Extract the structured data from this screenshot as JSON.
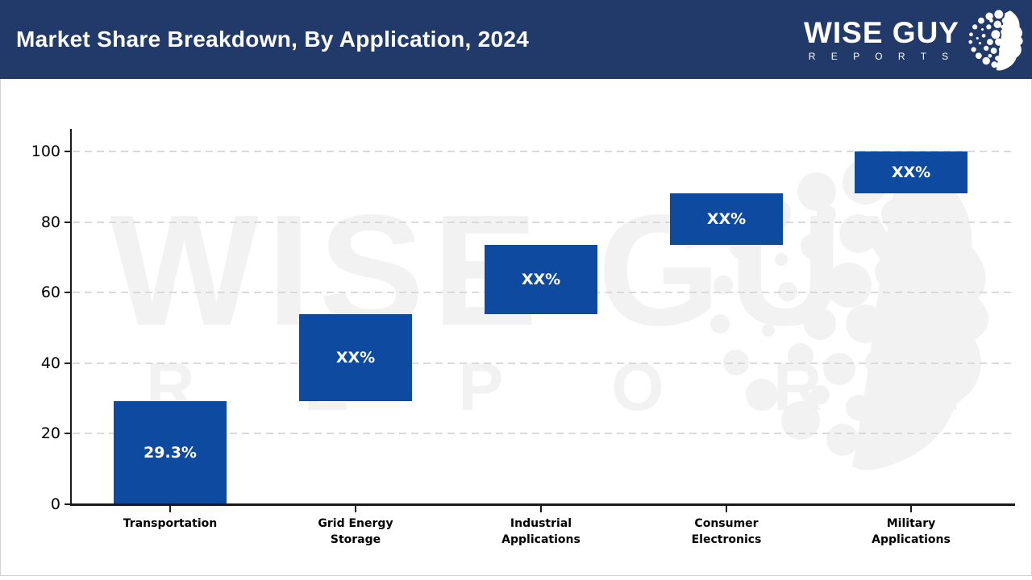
{
  "header": {
    "title": "Market Share Breakdown, By Application, 2024",
    "bg_color": "#223a69",
    "logo": {
      "brand": "WISE GUY",
      "sub": "R E P O R T S",
      "head_icon": "dotted-head-profile-icon"
    }
  },
  "watermark": {
    "line1": "WISE GUY",
    "line2": "R E P O R T S",
    "color": "#f2f2f2"
  },
  "chart_data": {
    "type": "bar",
    "subtype": "waterfall",
    "title": "Market Share Breakdown, By Application, 2024",
    "categories": [
      "Transportation",
      "Grid Energy\nStorage",
      "Industrial\nApplications",
      "Consumer\nElectronics",
      "Military\nApplications"
    ],
    "segments": [
      {
        "category": "Transportation",
        "start": 0,
        "end": 29.3,
        "value": 29.3,
        "value_label": "29.3%"
      },
      {
        "category": "Grid Energy Storage",
        "start": 29.3,
        "end": 53.9,
        "value": 24.6,
        "value_label": "XX%"
      },
      {
        "category": "Industrial Applications",
        "start": 53.9,
        "end": 73.5,
        "value": 19.6,
        "value_label": "XX%"
      },
      {
        "category": "Consumer Electronics",
        "start": 73.5,
        "end": 88.1,
        "value": 14.6,
        "value_label": "XX%"
      },
      {
        "category": "Military Applications",
        "start": 88.1,
        "end": 100,
        "value": 11.9,
        "value_label": "XX%"
      }
    ],
    "yticks": [
      0,
      20,
      40,
      60,
      80,
      100
    ],
    "ylim": [
      0,
      106.5
    ],
    "xlabel": "",
    "ylabel": "",
    "grid": "horizontal-dashed",
    "legend": "none",
    "bar_color": "#0d4aa0",
    "value_label_color": "#ffffff",
    "axis_color": "#1a1a1a",
    "gridline_color": "#dadada"
  }
}
